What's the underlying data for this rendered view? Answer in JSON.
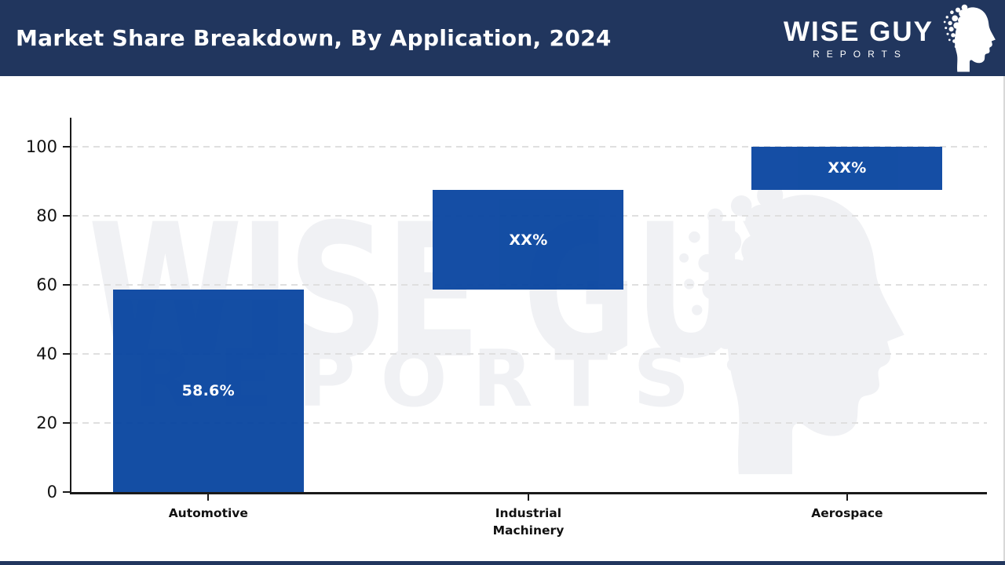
{
  "header": {
    "title": "Market Share Breakdown, By Application, 2024",
    "logo": {
      "name": "WISE GUY",
      "sub": "REPORTS"
    }
  },
  "watermark": {
    "name": "WISE GUY",
    "sub": "REPORTS"
  },
  "chart_data": {
    "type": "bar",
    "subtype": "floating-segment-waterfall",
    "title": "Market Share Breakdown, By Application, 2024",
    "categories": [
      "Automotive",
      "Industrial Machinery",
      "Aerospace"
    ],
    "bars": [
      {
        "category": "Automotive",
        "start": 0,
        "end": 58.6,
        "label": "58.6%"
      },
      {
        "category": "Industrial Machinery",
        "start": 58.6,
        "end": 87.5,
        "label": "XX%"
      },
      {
        "category": "Aerospace",
        "start": 87.5,
        "end": 100,
        "label": "XX%"
      }
    ],
    "xlabel": "",
    "ylabel": "",
    "ylim": [
      0,
      108.4
    ],
    "yticks": [
      0,
      20,
      40,
      60,
      80,
      100
    ],
    "grid": "horizontal-dashed",
    "legend": "none",
    "colors": {
      "bar": "#0845A0",
      "bar_label": "#FFFFFF",
      "axis": "#1A1A1A",
      "grid": "#DFDFDF",
      "tick_label": "#111111",
      "header_bg": "#21365E",
      "watermark": "#F0F1F4"
    }
  }
}
